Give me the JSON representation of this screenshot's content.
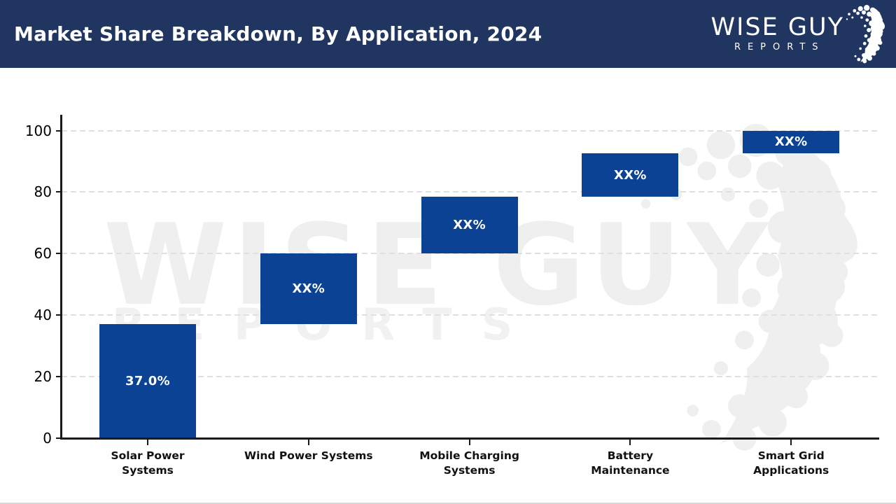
{
  "header": {
    "title": "Market Share Breakdown, By Application, 2024",
    "logo": {
      "brand_top": "WISE GUY",
      "brand_bottom": "REPORTS"
    }
  },
  "watermark": {
    "line1": "WISE GUY",
    "line2": "REPORTS"
  },
  "colors": {
    "header_bg": "#203560",
    "bar_blue": "#0b4294",
    "grid_gray": "#e0e0e0",
    "axis_black": "#1a1a1a",
    "bar_label_white": "#ffffff",
    "watermark_gray": "#efefef"
  },
  "chart_data": {
    "type": "bar",
    "subtype": "waterfall",
    "title": "Market Share Breakdown, By Application, 2024",
    "unit": "%",
    "categories": [
      "Solar Power Systems",
      "Wind Power Systems",
      "Mobile Charging Systems",
      "Battery Maintenance",
      "Smart Grid Applications"
    ],
    "category_lines": [
      [
        "Solar Power",
        "Systems"
      ],
      [
        "Wind Power Systems"
      ],
      [
        "Mobile Charging",
        "Systems"
      ],
      [
        "Battery",
        "Maintenance"
      ],
      [
        "Smart Grid",
        "Applications"
      ]
    ],
    "series": [
      {
        "name": "Market Share",
        "starts": [
          0,
          37,
          60,
          78.5,
          92.5
        ],
        "values": [
          37,
          23,
          18.5,
          14,
          7.5
        ],
        "labels": [
          "37.0%",
          "XX%",
          "XX%",
          "XX%",
          "XX%"
        ]
      }
    ],
    "yticks": [
      0,
      20,
      40,
      60,
      80,
      100
    ],
    "ylim": [
      0,
      105
    ],
    "grid": {
      "horizontal": true,
      "style": "dashed"
    },
    "legend": null
  }
}
